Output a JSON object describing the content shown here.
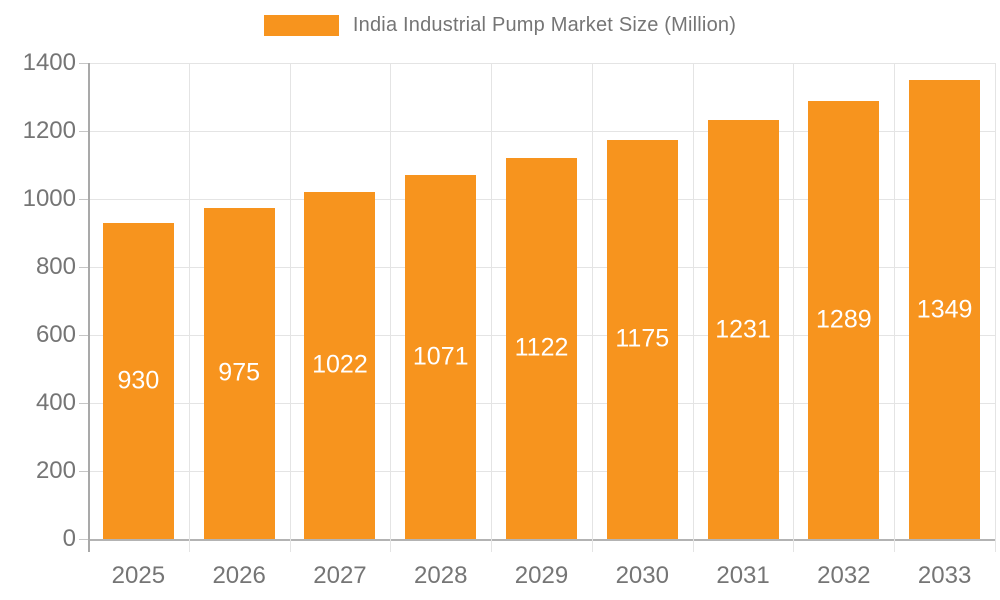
{
  "colors": {
    "bar": "#f7941e",
    "axis_text": "#757575",
    "grid_line": "#e4e4e4",
    "axis_line": "#b3b3b3",
    "bar_label_text": "#ffffff",
    "background": "#ffffff"
  },
  "legend": {
    "label": "India Industrial Pump Market Size (Million)",
    "swatch_icon": "orange-rect-swatch"
  },
  "chart_data": {
    "type": "bar",
    "title": "India Industrial Pump Market Size (Million)",
    "categories": [
      "2025",
      "2026",
      "2027",
      "2028",
      "2029",
      "2030",
      "2031",
      "2032",
      "2033"
    ],
    "values": [
      930,
      975,
      1022,
      1071,
      1122,
      1175,
      1231,
      1289,
      1349
    ],
    "series_name": "India Industrial Pump Market Size (Million)",
    "xlabel": "",
    "ylabel": "",
    "ylim": [
      0,
      1400
    ],
    "yticks": [
      0,
      200,
      400,
      600,
      800,
      1000,
      1200,
      1400
    ],
    "grid": true,
    "legend_position": "top-center",
    "bar_labels_inside": true
  }
}
